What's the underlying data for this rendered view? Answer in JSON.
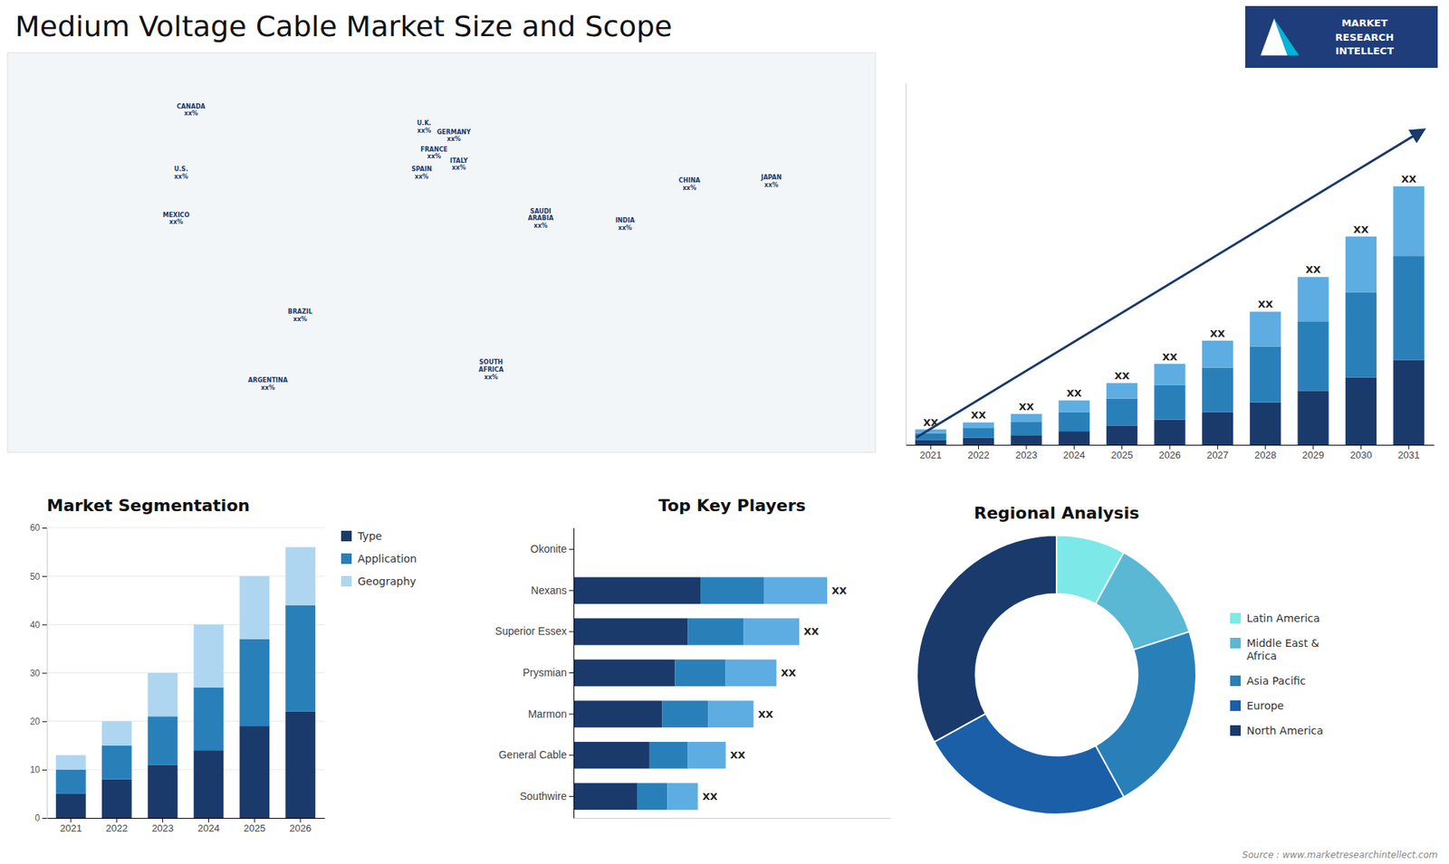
{
  "title": "Medium Voltage Cable Market Size and Scope",
  "annotations": [
    "MARKET",
    "RESEARCH",
    "INTELLECT",
    "Source : www.marketresearchintellect.com"
  ],
  "chart_data": [
    {
      "type": "map",
      "xlim": [
        -170,
        180
      ],
      "ylim": [
        -58,
        82
      ],
      "tick_labels": false,
      "annotations": [
        {
          "text": "CANADA\nxx%",
          "x": -96,
          "y": 62
        },
        {
          "text": "U.S.\nxx%",
          "x": -100,
          "y": 40
        },
        {
          "text": "MEXICO\nxx%",
          "x": -102,
          "y": 24
        },
        {
          "text": "BRAZIL\nxx%",
          "x": -52,
          "y": -10
        },
        {
          "text": "ARGENTINA\nxx%",
          "x": -65,
          "y": -34
        },
        {
          "text": "U.K.\nxx%",
          "x": -2,
          "y": 56
        },
        {
          "text": "FRANCE\nxx%",
          "x": 2,
          "y": 47
        },
        {
          "text": "SPAIN\nxx%",
          "x": -3,
          "y": 40
        },
        {
          "text": "GERMANY\nxx%",
          "x": 10,
          "y": 53
        },
        {
          "text": "ITALY\nxx%",
          "x": 12,
          "y": 43
        },
        {
          "text": "SAUDI\nARABIA\nxx%",
          "x": 45,
          "y": 24
        },
        {
          "text": "SOUTH\nAFRICA\nxx%",
          "x": 25,
          "y": -29
        },
        {
          "text": "CHINA\nxx%",
          "x": 105,
          "y": 36
        },
        {
          "text": "JAPAN\nxx%",
          "x": 138,
          "y": 37
        },
        {
          "text": "INDIA\nxx%",
          "x": 79,
          "y": 22
        }
      ]
    },
    {
      "type": "bar",
      "stacked": true,
      "categories": [
        "2021",
        "2022",
        "2023",
        "2024",
        "2025",
        "2026",
        "2027",
        "2028",
        "2029",
        "2030",
        "2031"
      ],
      "series": [
        {
          "color": "#1a3a6b",
          "values": [
            1.2,
            1.8,
            2.5,
            3.5,
            5.0,
            6.5,
            8.5,
            11.0,
            14.0,
            17.5,
            22.0
          ]
        },
        {
          "color": "#2980b9",
          "values": [
            1.8,
            2.5,
            3.5,
            5.0,
            7.0,
            9.0,
            11.5,
            14.5,
            18.0,
            22.0,
            27.0
          ]
        },
        {
          "color": "#5dade2",
          "values": [
            1.0,
            1.5,
            2.0,
            3.0,
            4.0,
            5.5,
            7.0,
            9.0,
            11.5,
            14.5,
            18.0
          ]
        }
      ],
      "ylim": [
        0,
        93.8
      ],
      "tick_labels": "x",
      "annotations": [
        {
          "text": "XX",
          "x": "2021"
        },
        {
          "text": "XX",
          "x": "2022"
        },
        {
          "text": "XX",
          "x": "2023"
        },
        {
          "text": "XX",
          "x": "2024"
        },
        {
          "text": "XX",
          "x": "2025"
        },
        {
          "text": "XX",
          "x": "2026"
        },
        {
          "text": "XX",
          "x": "2027"
        },
        {
          "text": "XX",
          "x": "2028"
        },
        {
          "text": "XX",
          "x": "2029"
        },
        {
          "text": "XX",
          "x": "2030"
        },
        {
          "text": "XX",
          "x": "2031"
        }
      ]
    },
    {
      "type": "bar",
      "title": "Market Segmentation",
      "stacked": true,
      "categories": [
        "2021",
        "2022",
        "2023",
        "2024",
        "2025",
        "2026"
      ],
      "series": [
        {
          "name": "Type",
          "color": "#1a3a6b",
          "values": [
            5,
            8,
            11,
            14,
            19,
            22
          ]
        },
        {
          "name": "Application",
          "color": "#2980b9",
          "values": [
            5,
            7,
            10,
            13,
            18,
            22
          ]
        },
        {
          "name": "Geography",
          "color": "#aed6f1",
          "values": [
            3,
            5,
            9,
            13,
            13,
            12
          ]
        }
      ],
      "ylim": [
        0,
        60
      ],
      "yticks": [
        0,
        10,
        20,
        30,
        40,
        50,
        60
      ],
      "grid": true,
      "legend": "right"
    },
    {
      "type": "bar",
      "title": "Top Key Players",
      "orientation": "horizontal",
      "stacked": true,
      "categories": [
        "Okonite",
        "Nexans",
        "Superior Essex",
        "Prysmian",
        "Marmon",
        "General Cable",
        "Southwire"
      ],
      "series": [
        {
          "color": "#1a3a6b",
          "values": [
            0.0,
            5.0,
            4.5,
            4.0,
            3.5,
            3.0,
            2.5
          ]
        },
        {
          "color": "#2980b9",
          "values": [
            0.0,
            2.5,
            2.2,
            2.0,
            1.8,
            1.5,
            1.2
          ]
        },
        {
          "color": "#5dade2",
          "values": [
            0.0,
            2.5,
            2.2,
            2.0,
            1.8,
            1.5,
            1.2
          ]
        }
      ],
      "xlim": [
        0,
        12.5
      ],
      "tick_labels": "y",
      "annotations": [
        {
          "text": "XX",
          "y": "Nexans"
        },
        {
          "text": "XX",
          "y": "Superior Essex"
        },
        {
          "text": "XX",
          "y": "Prysmian"
        },
        {
          "text": "XX",
          "y": "Marmon"
        },
        {
          "text": "XX",
          "y": "General Cable"
        },
        {
          "text": "XX",
          "y": "Southwire"
        }
      ]
    },
    {
      "type": "pie",
      "title": "Regional Analysis",
      "categories": [
        "Latin America",
        "Middle East &\nAfrica",
        "Asia Pacific",
        "Europe",
        "North America"
      ],
      "values": [
        8,
        12,
        22,
        25,
        33
      ],
      "colors": [
        "#7de8e8",
        "#5ab8d4",
        "#2980b9",
        "#1a5fa8",
        "#1a3a6b"
      ],
      "legend": "right"
    }
  ]
}
